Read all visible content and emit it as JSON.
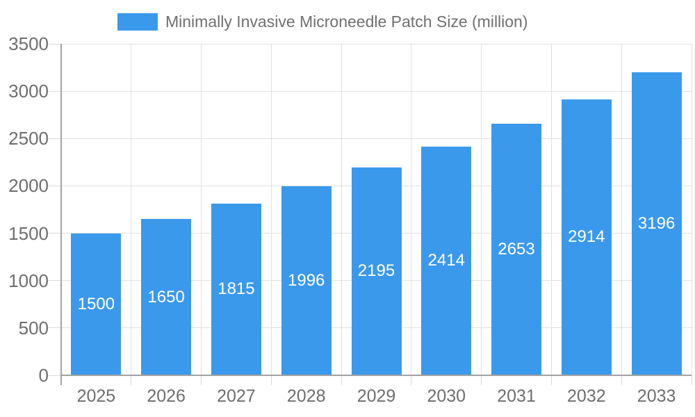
{
  "colors": {
    "bar": "#3B99EC",
    "grid": "#E0E0E0",
    "tick": "#D9D9D9",
    "axis_line": "#A2A2A2",
    "axis_label": "#6E6E6E",
    "legend_text": "#707070",
    "bar_label": "#FFFFFF"
  },
  "chart_data": {
    "type": "bar",
    "title": "Minimally Invasive Microneedle Patch Size (million)",
    "categories": [
      "2025",
      "2026",
      "2027",
      "2028",
      "2029",
      "2030",
      "2031",
      "2032",
      "2033"
    ],
    "values": [
      1500,
      1650,
      1815,
      1996,
      2195,
      2414,
      2653,
      2914,
      3196
    ],
    "xlabel": "",
    "ylabel": "",
    "ylim": [
      0,
      3500
    ],
    "ytick_step": 500,
    "yticks": [
      "0",
      "500",
      "1000",
      "1500",
      "2000",
      "2500",
      "3000",
      "3500"
    ],
    "grid": true,
    "legend_position": "top",
    "bar_value_labels": true,
    "bar_label_position": "center"
  }
}
